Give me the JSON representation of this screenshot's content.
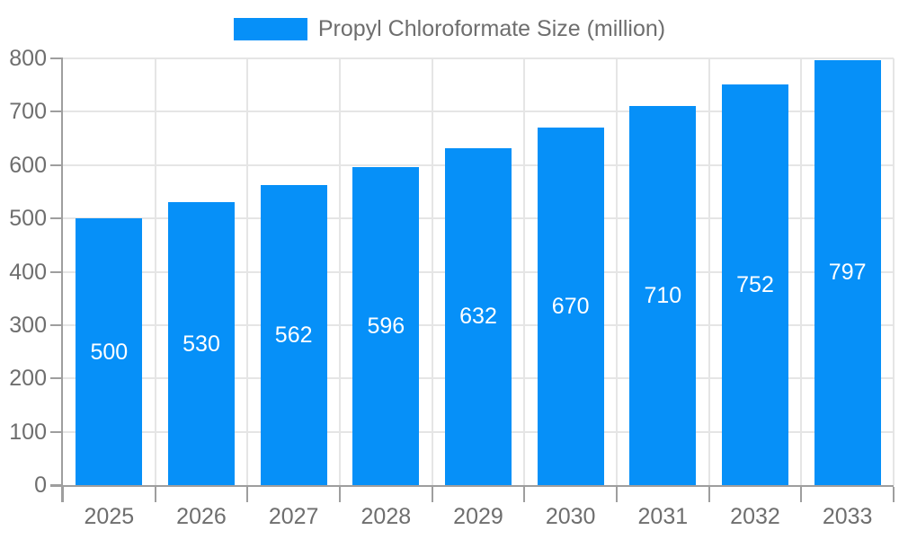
{
  "legend": {
    "label": "Propyl Chloroformate Size (million)"
  },
  "colors": {
    "bar": "#0690f8",
    "grid": "#e5e5e5",
    "axis": "#9e9e9e",
    "text": "#6e6e6e",
    "value_label": "#ffffff",
    "background": "#ffffff"
  },
  "chart_data": {
    "type": "bar",
    "title": "",
    "series_name": "Propyl Chloroformate Size (million)",
    "categories": [
      "2025",
      "2026",
      "2027",
      "2028",
      "2029",
      "2030",
      "2031",
      "2032",
      "2033"
    ],
    "values": [
      500,
      530,
      562,
      596,
      632,
      670,
      710,
      752,
      797
    ],
    "xlabel": "",
    "ylabel": "",
    "ylim": [
      0,
      800
    ],
    "yticks": [
      0,
      100,
      200,
      300,
      400,
      500,
      600,
      700,
      800
    ],
    "grid": true,
    "legend_position": "top",
    "value_labels": "inside-center"
  }
}
